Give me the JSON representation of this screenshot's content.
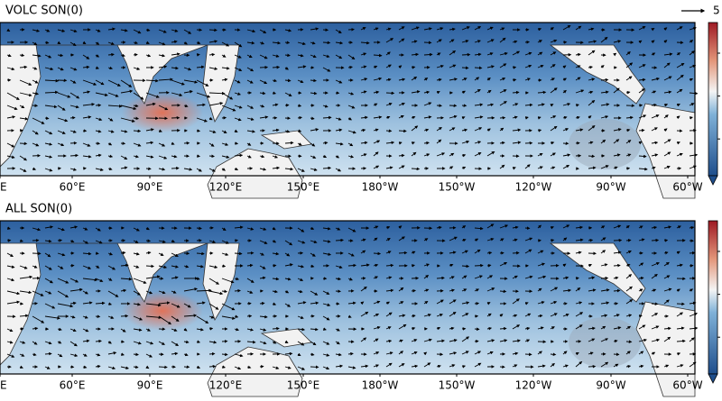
{
  "scale_label": "5",
  "panels": [
    {
      "title": "VOLC SON(0)",
      "lon_labels": [
        "E",
        "60°E",
        "90°E",
        "120°E",
        "150°E",
        "180°W",
        "150°W",
        "120°W",
        "90°W",
        "60°W"
      ]
    },
    {
      "title": "ALL SON(0)",
      "lon_labels": [
        "E",
        "60°E",
        "90°E",
        "120°E",
        "150°E",
        "180°W",
        "150°W",
        "120°W",
        "90°W",
        "60°W"
      ]
    }
  ]
}
